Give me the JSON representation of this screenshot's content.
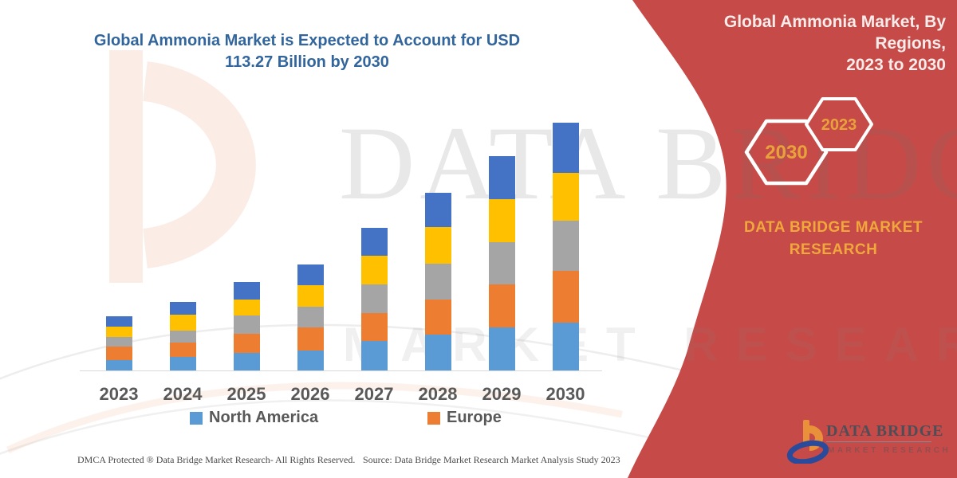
{
  "title": {
    "line1": "Global Ammonia Market is Expected to Account for USD",
    "line2": "113.27 Billion by 2030"
  },
  "banner": {
    "heading_line1": "Global Ammonia Market, By Regions,",
    "heading_line2": "2023 to 2030",
    "hex_large_year": "2030",
    "hex_small_year": "2023",
    "brand_line1": "DATA BRIDGE MARKET",
    "brand_line2": "RESEARCH",
    "bg_color": "#C64A47",
    "gold_color": "#F0A73C"
  },
  "watermark": {
    "big_text": "DATA BRIDGE",
    "sub_text": "MARKET RESEARCH"
  },
  "legend": [
    {
      "label": "North America",
      "color": "#5B9BD5"
    },
    {
      "label": "Europe",
      "color": "#ED7D31"
    }
  ],
  "footer": {
    "left": "DMCA Protected ® Data Bridge Market Research-  All Rights Reserved.",
    "right": "Source: Data Bridge Market Research  Market Analysis Study 2023"
  },
  "logo": {
    "name_text": "DATA BRIDGE",
    "sub_text": "MARKET RESEARCH"
  },
  "chart_data": {
    "type": "bar",
    "stacked": true,
    "title": "Global Ammonia Market is Expected to Account for USD 113.27 Billion by 2030",
    "unit": "USD Billion",
    "categories": [
      "2023",
      "2024",
      "2025",
      "2026",
      "2027",
      "2028",
      "2029",
      "2030"
    ],
    "series": [
      {
        "name": "North America",
        "color": "#5B9BD5",
        "values": [
          4.9,
          6.1,
          8.0,
          9.2,
          13.5,
          16.5,
          19.6,
          21.8
        ]
      },
      {
        "name": "Europe",
        "color": "#ED7D31",
        "values": [
          5.9,
          6.7,
          8.6,
          10.6,
          12.8,
          15.9,
          19.6,
          23.9
        ]
      },
      {
        "name": "Unlabeled gray segment",
        "color": "#A5A5A5",
        "values": [
          4.6,
          5.5,
          8.6,
          9.5,
          13.2,
          16.5,
          19.6,
          22.6
        ]
      },
      {
        "name": "Unlabeled yellow segment",
        "color": "#FFC000",
        "values": [
          4.6,
          7.3,
          7.3,
          9.8,
          13.1,
          16.5,
          19.6,
          22.0
        ]
      },
      {
        "name": "Unlabeled dark-blue segment",
        "color": "#4472C4",
        "values": [
          4.6,
          5.9,
          8.0,
          9.5,
          12.6,
          15.9,
          19.7,
          23.0
        ]
      }
    ],
    "totals": [
      24.6,
      31.5,
      40.5,
      48.6,
      65.2,
      81.3,
      98.1,
      113.27
    ],
    "legend_visible": [
      "North America",
      "Europe"
    ],
    "ylim": [
      0,
      113.27
    ],
    "gridlines": false,
    "legend_position": "bottom"
  }
}
